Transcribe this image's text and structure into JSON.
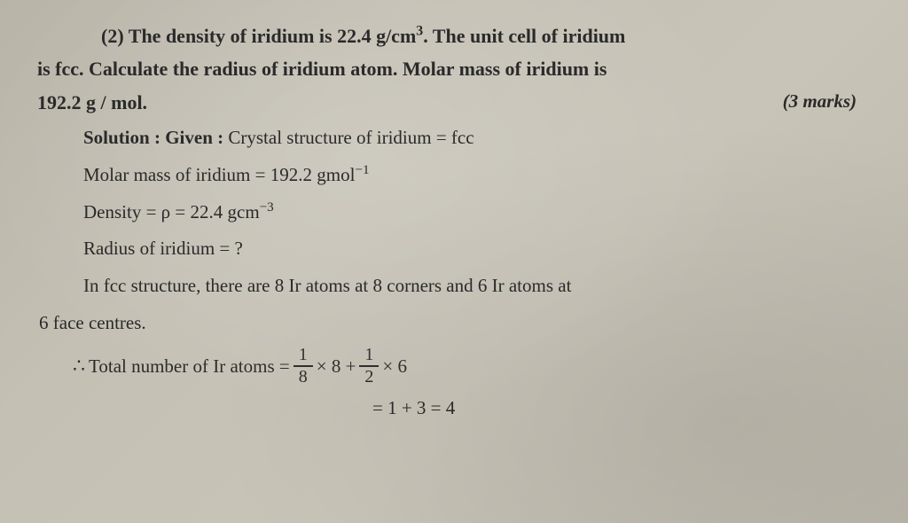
{
  "question": {
    "number": "(2)",
    "line1_part1": "The density of iridium is 22.4 g/cm",
    "line1_sup": "3",
    "line1_part2": ". The unit cell of iridium",
    "line2": "is fcc. Calculate the radius of iridium atom. Molar mass of iridium is",
    "line3": "192.2 g / mol."
  },
  "marks": "(3 marks)",
  "solution": {
    "label": "Solution :",
    "given_label": "Given :",
    "given_text": " Crystal structure of iridium = fcc",
    "molar_label": "Molar mass of iridium = 192.2 gmol",
    "molar_sup": "−1",
    "density_label": "Density = ρ = 22.4 gcm",
    "density_sup": "−3",
    "radius_label": "Radius of iridium = ?",
    "fcc_text1": "In fcc structure, there are 8 Ir atoms at 8 corners and 6 Ir atoms at",
    "fcc_text2": "6 face centres.",
    "total_label": "Total number of Ir atoms =",
    "frac1_num": "1",
    "frac1_den": "8",
    "times1": "× 8 +",
    "frac2_num": "1",
    "frac2_den": "2",
    "times2": "× 6",
    "result": "= 1 + 3 = 4"
  },
  "colors": {
    "text": "#2a2a2a",
    "background_light": "#c8c4b8",
    "background_dark": "#b8b4a8"
  }
}
